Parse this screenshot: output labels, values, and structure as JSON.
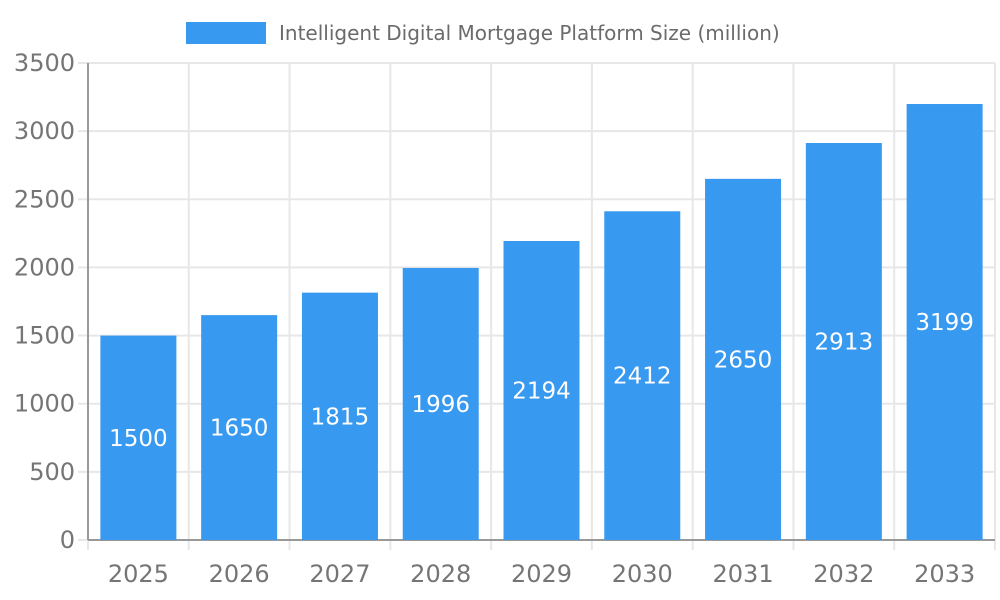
{
  "legend": {
    "label": "Intelligent Digital Mortgage Platform Size (million)",
    "swatch_color": "#3899F0"
  },
  "chart_data": {
    "type": "bar",
    "title": "Intelligent Digital Mortgage Platform Size (million)",
    "categories": [
      "2025",
      "2026",
      "2027",
      "2028",
      "2029",
      "2030",
      "2031",
      "2032",
      "2033"
    ],
    "series": [
      {
        "name": "Intelligent Digital Mortgage Platform Size (million)",
        "values": [
          1500,
          1650,
          1815,
          1996,
          2194,
          2412,
          2650,
          2913,
          3199
        ]
      }
    ],
    "value_labels": [
      "1500",
      "1650",
      "1815",
      "1996",
      "2194",
      "2412",
      "2650",
      "2913",
      "3199"
    ],
    "xlabel": "",
    "ylabel": "",
    "ylim": [
      0,
      3500
    ],
    "yticks": [
      0,
      500,
      1000,
      1500,
      2000,
      2500,
      3000,
      3500
    ],
    "grid": true,
    "legend_position": "top",
    "colors": {
      "bar": "#3899F0",
      "value_label": "#ffffff",
      "grid": "#e7e7e7",
      "axis": "#999999",
      "tick_label": "#757575",
      "title": "#6b6b6b"
    }
  }
}
